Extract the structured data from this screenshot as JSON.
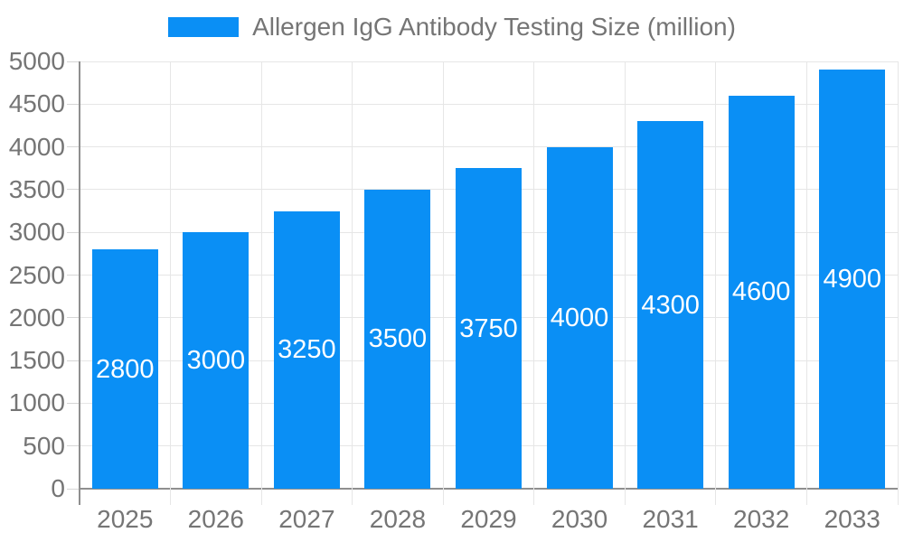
{
  "legend": {
    "label": "Allergen IgG Antibody Testing Size (million)"
  },
  "chart_data": {
    "type": "bar",
    "title": "Allergen IgG Antibody Testing Size (million)",
    "categories": [
      "2025",
      "2026",
      "2027",
      "2028",
      "2029",
      "2030",
      "2031",
      "2032",
      "2033"
    ],
    "values": [
      2800,
      3000,
      3250,
      3500,
      3750,
      4000,
      4300,
      4600,
      4900
    ],
    "value_labels": [
      "2800",
      "3000",
      "3250",
      "3500",
      "3750",
      "4000",
      "4300",
      "4600",
      "4900"
    ],
    "xlabel": "",
    "ylabel": "",
    "ylim": [
      0,
      5000
    ],
    "ytick_step": 500,
    "ytick_labels": [
      "0",
      "500",
      "1000",
      "1500",
      "2000",
      "2500",
      "3000",
      "3500",
      "4000",
      "4500",
      "5000"
    ],
    "grid": true,
    "legend_position": "top",
    "value_label_position": "center-of-bar",
    "colors": {
      "bar": "#0a8ff5",
      "bar_label": "#ffffff",
      "axis_text": "#757575",
      "grid_line": "#e6e6e6",
      "axis_line": "#8f8f8f",
      "tick_line": "#d6d6d6",
      "background": "#ffffff"
    }
  }
}
